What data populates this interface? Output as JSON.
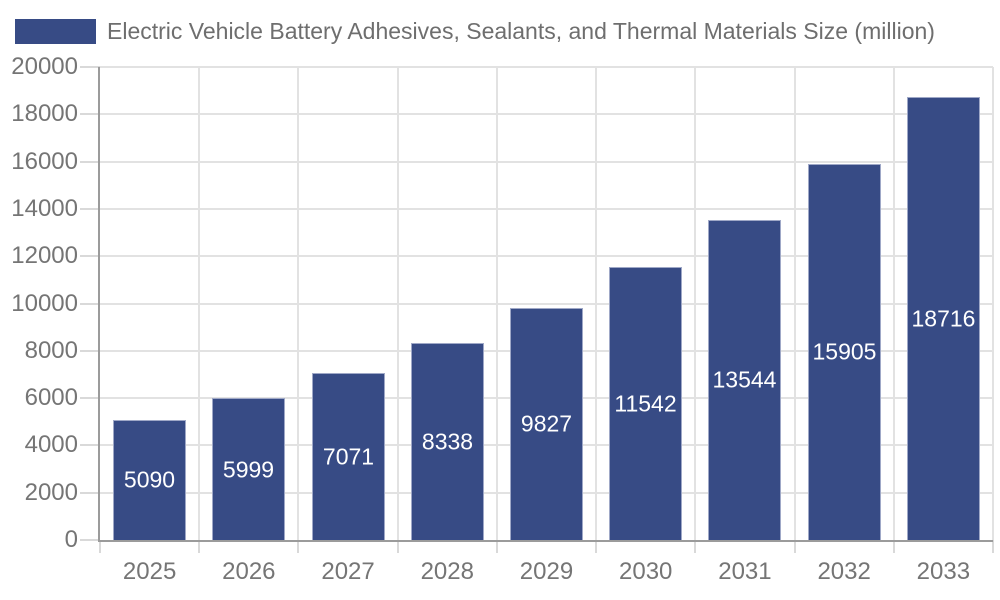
{
  "chart_data": {
    "type": "bar",
    "title": "Electric Vehicle Battery Adhesives, Sealants, and Thermal Materials Size (million)",
    "categories": [
      "2025",
      "2026",
      "2027",
      "2028",
      "2029",
      "2030",
      "2031",
      "2032",
      "2033"
    ],
    "series": [
      {
        "name": "Electric Vehicle Battery Adhesives, Sealants, and Thermal Materials Size (million)",
        "values": [
          5090,
          5999,
          7071,
          8338,
          9827,
          11542,
          13544,
          15905,
          18716
        ]
      }
    ],
    "xlabel": "",
    "ylabel": "",
    "ylim": [
      0,
      20000
    ],
    "ytick_step": 2000,
    "ytick_labels": [
      "0",
      "2000",
      "4000",
      "6000",
      "8000",
      "10000",
      "12000",
      "14000",
      "16000",
      "18000",
      "20000"
    ],
    "grid": true,
    "legend_position": "top-left",
    "value_label_position": "center",
    "colors": {
      "bar": "#374B85",
      "bar_border": "#9FA8C7",
      "grid": "#E2E2E2",
      "axis": "#9B9B9B",
      "tick": "#D9D9D9",
      "tick_label": "#757575",
      "title": "#6E6E6E",
      "value_label": "#FFFFFF",
      "background": "#FFFFFF"
    }
  }
}
